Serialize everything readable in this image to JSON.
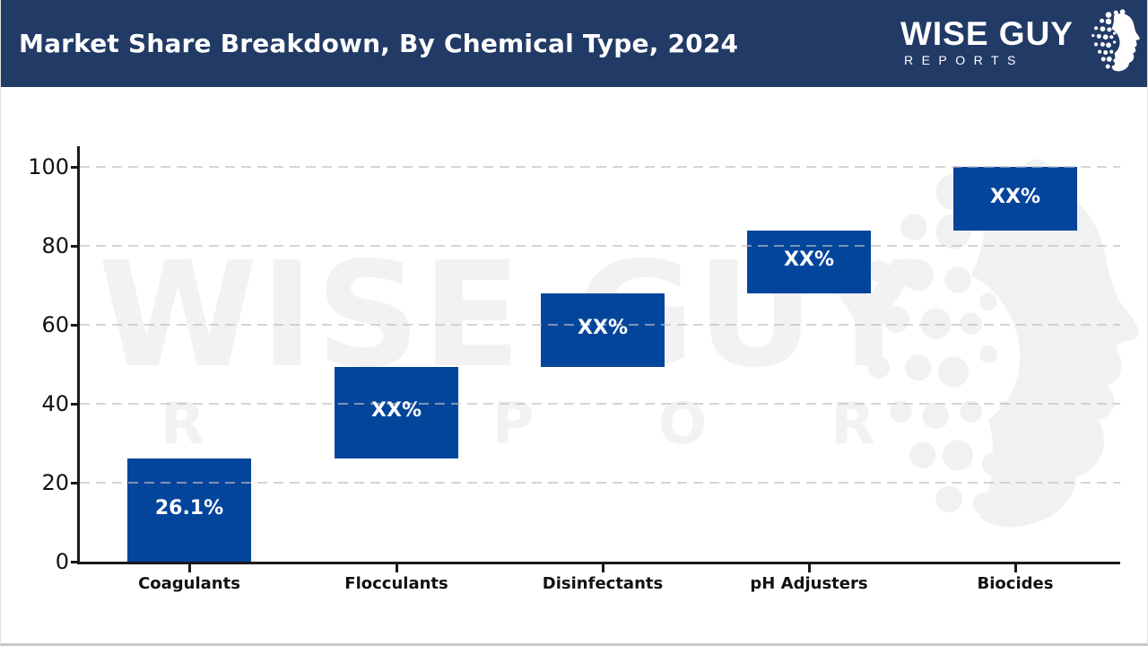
{
  "header": {
    "title": "Market Share Breakdown, By Chemical Type, 2024",
    "brand": {
      "name": "WISE GUY",
      "subtitle": "REPORTS"
    }
  },
  "watermark": {
    "wordmark": "WISE GUY",
    "subtitle": "R E P O R T S"
  },
  "chart_data": {
    "type": "bar",
    "subtype": "waterfall-stacked-percentage",
    "title": "Market Share Breakdown, By Chemical Type, 2024",
    "categories": [
      "Coagulants",
      "Flocculants",
      "Disinfectants",
      "pH Adjusters",
      "Biocides"
    ],
    "segments": [
      {
        "category": "Coagulants",
        "start": 0,
        "end": 26.1,
        "label": "26.1%"
      },
      {
        "category": "Flocculants",
        "start": 26.1,
        "end": 49.4,
        "label": "XX%"
      },
      {
        "category": "Disinfectants",
        "start": 49.4,
        "end": 67.9,
        "label": "XX%"
      },
      {
        "category": "pH Adjusters",
        "start": 67.9,
        "end": 83.8,
        "label": "XX%"
      },
      {
        "category": "Biocides",
        "start": 83.8,
        "end": 100,
        "label": "XX%"
      }
    ],
    "xlabel": "",
    "ylabel": "",
    "ylim": [
      0,
      100
    ],
    "yticks": [
      0,
      20,
      40,
      60,
      80,
      100
    ],
    "grid": "horizontal-dashed",
    "legend": "none",
    "bar_color": "#04459C",
    "bar_label_color": "#FFFFFF"
  },
  "colors": {
    "header_bg": "#213A66",
    "bar_blue": "#04459C",
    "axis": "#1A1A1A",
    "gridline": "#D9D9D9",
    "watermark": "#F2F2F4",
    "page_bg": "#FFFFFF"
  }
}
